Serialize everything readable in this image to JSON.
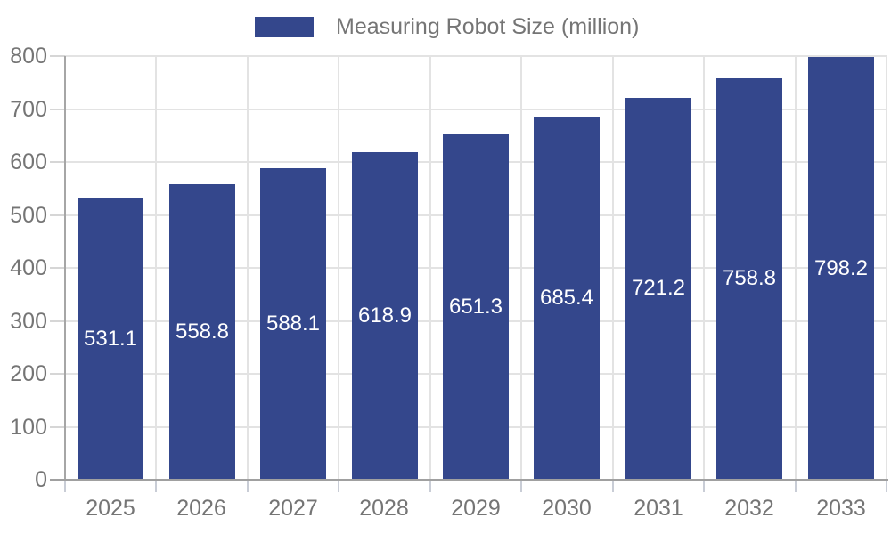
{
  "chart_data": {
    "type": "bar",
    "title": "Measuring Robot Size (million)",
    "legend": [
      "Measuring Robot Size (million)"
    ],
    "legend_position": "top",
    "categories": [
      "2025",
      "2026",
      "2027",
      "2028",
      "2029",
      "2030",
      "2031",
      "2032",
      "2033"
    ],
    "values": [
      531.1,
      558.8,
      588.1,
      618.9,
      651.3,
      685.4,
      721.2,
      758.8,
      798.2
    ],
    "value_labels": [
      "531.1",
      "558.8",
      "588.1",
      "618.9",
      "651.3",
      "685.4",
      "721.2",
      "758.8",
      "798.2"
    ],
    "xlabel": "",
    "ylabel": "",
    "ylim": [
      0,
      800
    ],
    "yticks": [
      0,
      100,
      200,
      300,
      400,
      500,
      600,
      700,
      800
    ],
    "grid": true,
    "bar_color": "#34478c",
    "value_label_color": "#ffffff",
    "axis_text_color": "#757575",
    "gridline_color": "#e3e3e3"
  }
}
